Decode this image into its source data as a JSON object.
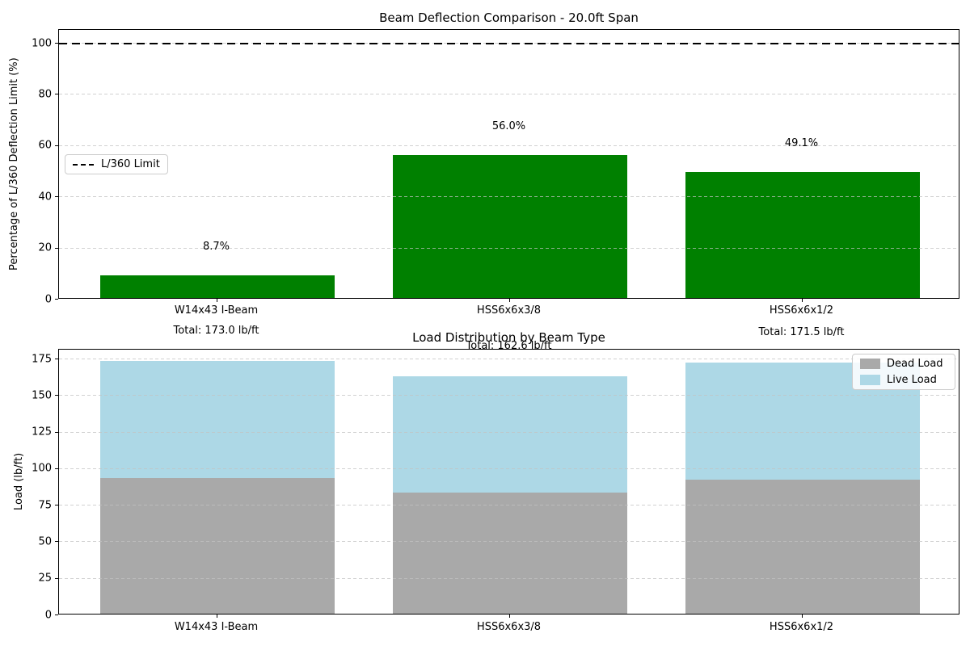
{
  "figure_background": "#ffffff",
  "chart_data": [
    {
      "type": "bar",
      "title": "Beam Deflection Comparison - 20.0ft Span",
      "ylabel": "Percentage of L/360 Deflection Limit (%)",
      "xlabel": "",
      "categories": [
        "W14x43 I-Beam",
        "HSS6x6x3/8",
        "HSS6x6x1/2"
      ],
      "values": [
        8.7,
        56.0,
        49.1
      ],
      "bar_labels": [
        "8.7%",
        "56.0%",
        "49.1%"
      ],
      "bar_color": "#008000",
      "yticks": [
        0,
        20,
        40,
        60,
        80,
        100
      ],
      "ylim": [
        0,
        105.4
      ],
      "grid": "horizontal-dashed",
      "reference_line": {
        "value": 100,
        "label": "L/360 Limit",
        "color": "#000000",
        "style": "dashed"
      },
      "legend": {
        "position": "center-left",
        "entries": [
          {
            "label": "L/360 Limit",
            "swatch": "dashed-line",
            "color": "#000000"
          }
        ]
      }
    },
    {
      "type": "stacked-bar",
      "title": "Load Distribution by Beam Type",
      "ylabel": "Load (lb/ft)",
      "xlabel": "",
      "categories": [
        "W14x43 I-Beam",
        "HSS6x6x3/8",
        "HSS6x6x1/2"
      ],
      "series": [
        {
          "name": "Dead Load",
          "color": "#a9a9a9",
          "values": [
            93.0,
            82.6,
            91.5
          ]
        },
        {
          "name": "Live Load",
          "color": "#add8e6",
          "values": [
            80.0,
            80.0,
            80.0
          ]
        }
      ],
      "totals": [
        173.0,
        162.6,
        171.5
      ],
      "total_labels": [
        "Total: 173.0 lb/ft",
        "Total: 162.6 lb/ft",
        "Total: 171.5 lb/ft"
      ],
      "yticks": [
        0,
        25,
        50,
        75,
        100,
        125,
        150,
        175
      ],
      "ylim": [
        0,
        181.7
      ],
      "grid": "horizontal-dashed",
      "legend": {
        "position": "top-right",
        "entries": [
          {
            "label": "Dead Load",
            "swatch": "patch",
            "color": "#a9a9a9"
          },
          {
            "label": "Live Load",
            "swatch": "patch",
            "color": "#add8e6"
          }
        ]
      }
    }
  ]
}
